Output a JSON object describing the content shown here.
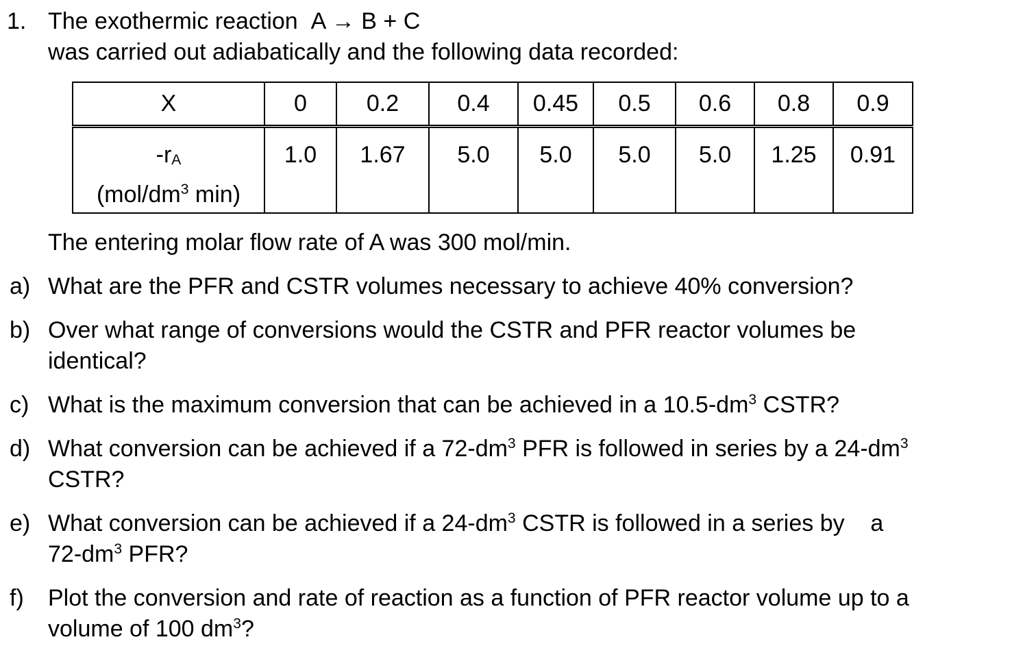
{
  "page": {
    "background": "#ffffff",
    "text_color": "#000000",
    "table_border_color": "#000000"
  },
  "problem": {
    "number": "1.",
    "intro_line1": "The exothermic reaction  A → B + C",
    "intro_line2": "was carried out adiabatically and the following data recorded:",
    "flow_rate_note": "The entering molar flow rate of A was 300 mol/min."
  },
  "table": {
    "x_label": "X",
    "x_values": [
      "0",
      "0.2",
      "0.4",
      "0.45",
      "0.5",
      "0.6",
      "0.8",
      "0.9"
    ],
    "rate_label_segments": [
      {
        "t": "-r"
      },
      {
        "t": "A",
        "s": "sub"
      }
    ],
    "rate_unit_segments": [
      {
        "t": "(mol/dm"
      },
      {
        "t": "3",
        "s": "sup"
      },
      {
        "t": " min)"
      }
    ],
    "rate_values": [
      "1.0",
      "1.67",
      "5.0",
      "5.0",
      "5.0",
      "5.0",
      "1.25",
      "0.91"
    ]
  },
  "questions": [
    {
      "label": "a)",
      "segments": [
        {
          "t": "What are the PFR and CSTR volumes necessary to achieve 40% conversion?"
        }
      ]
    },
    {
      "label": "b)",
      "segments": [
        {
          "t": "Over what range of conversions would the CSTR and PFR reactor volumes be"
        },
        {
          "br": true
        },
        {
          "t": "identical?"
        }
      ]
    },
    {
      "label": "c)",
      "segments": [
        {
          "t": "What is the maximum conversion that can be achieved in a 10.5-dm"
        },
        {
          "t": "3",
          "s": "sup"
        },
        {
          "t": " CSTR?"
        }
      ]
    },
    {
      "label": "d)",
      "segments": [
        {
          "t": "What conversion can be achieved if a 72-dm"
        },
        {
          "t": "3",
          "s": "sup"
        },
        {
          "t": " PFR is followed in series by a 24-dm"
        },
        {
          "t": "3",
          "s": "sup"
        },
        {
          "br": true
        },
        {
          "t": "CSTR?"
        }
      ]
    },
    {
      "label": "e)",
      "segments": [
        {
          "t": "What conversion can be achieved if a 24-dm"
        },
        {
          "t": "3",
          "s": "sup"
        },
        {
          "t": " CSTR is followed in a series by    a"
        },
        {
          "br": true
        },
        {
          "t": "72-dm"
        },
        {
          "t": "3",
          "s": "sup"
        },
        {
          "t": " PFR?"
        }
      ]
    },
    {
      "label": "f)",
      "segments": [
        {
          "t": "Plot the conversion and rate of reaction as a function of PFR reactor volume up to a"
        },
        {
          "br": true
        },
        {
          "t": "volume of 100 dm"
        },
        {
          "t": "3",
          "s": "sup"
        },
        {
          "t": "?"
        }
      ]
    }
  ]
}
